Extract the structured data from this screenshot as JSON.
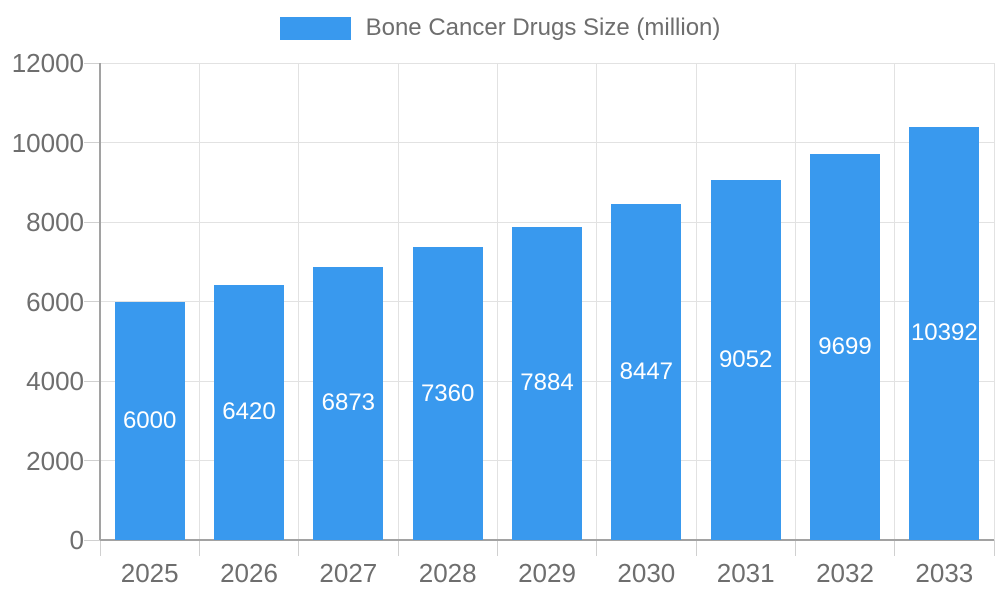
{
  "legend": {
    "label": "Bone Cancer Drugs Size (million)"
  },
  "colors": {
    "bar": "#3999EE",
    "bar_label": "#ffffff",
    "axis_text": "#6e6e6e",
    "legend_text": "#6e6e6e",
    "grid": "#e2e2e2",
    "tick": "#d0d0d0",
    "axis_line": "#a2a2a2",
    "background": "#ffffff"
  },
  "chart_data": {
    "type": "bar",
    "title": "Bone Cancer Drugs Size (million)",
    "series_name": "Bone Cancer Drugs Size (million)",
    "categories": [
      "2025",
      "2026",
      "2027",
      "2028",
      "2029",
      "2030",
      "2031",
      "2032",
      "2033"
    ],
    "values": [
      6000,
      6420,
      6873,
      7360,
      7884,
      8447,
      9052,
      9699,
      10392
    ],
    "xlabel": "",
    "ylabel": "",
    "ylim": [
      0,
      12000
    ],
    "ytick_step": 2000,
    "yticks": [
      0,
      2000,
      4000,
      6000,
      8000,
      10000,
      12000
    ],
    "grid": true,
    "legend_position": "top-center",
    "value_label_position": "inside-center"
  }
}
